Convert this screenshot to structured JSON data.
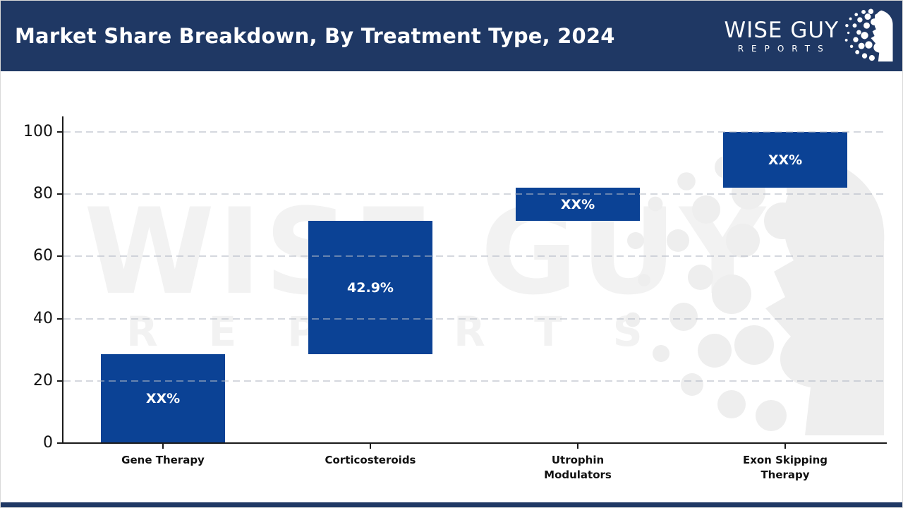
{
  "header": {
    "title": "Market Share Breakdown, By Treatment Type, 2024",
    "logo": {
      "line1": "WISE GUY",
      "line2": "REPORTS"
    }
  },
  "watermark": {
    "line1": "WISE GUY",
    "line2": "REPORTS"
  },
  "colors": {
    "header_bg": "#1f3864",
    "bar_blue": "#0b4295",
    "axis": "#1a1a1a",
    "gridline": "#d9d9d9",
    "watermark": "#f2f2f2"
  },
  "chart_data": {
    "type": "bar",
    "subtype": "waterfall",
    "title": "Market Share Breakdown, By Treatment Type, 2024",
    "categories": [
      "Gene Therapy",
      "Corticosteroids",
      "Utrophin Modulators",
      "Exon Skipping Therapy"
    ],
    "segments": [
      {
        "category": "Gene Therapy",
        "start": 0,
        "end": 28.6,
        "label": "XX%"
      },
      {
        "category": "Corticosteroids",
        "start": 28.6,
        "end": 71.5,
        "label": "42.9%"
      },
      {
        "category": "Utrophin Modulators",
        "start": 71.5,
        "end": 82.0,
        "label": "XX%"
      },
      {
        "category": "Exon Skipping Therapy",
        "start": 82.0,
        "end": 100,
        "label": "XX%"
      }
    ],
    "y_ticks": [
      0,
      20,
      40,
      60,
      80,
      100
    ],
    "ylim": [
      0,
      105
    ],
    "xlabel": "",
    "ylabel": "",
    "grid": "horizontal-dashed",
    "legend": null,
    "bar_color": "#0b4295",
    "value_label_color": "#ffffff"
  }
}
